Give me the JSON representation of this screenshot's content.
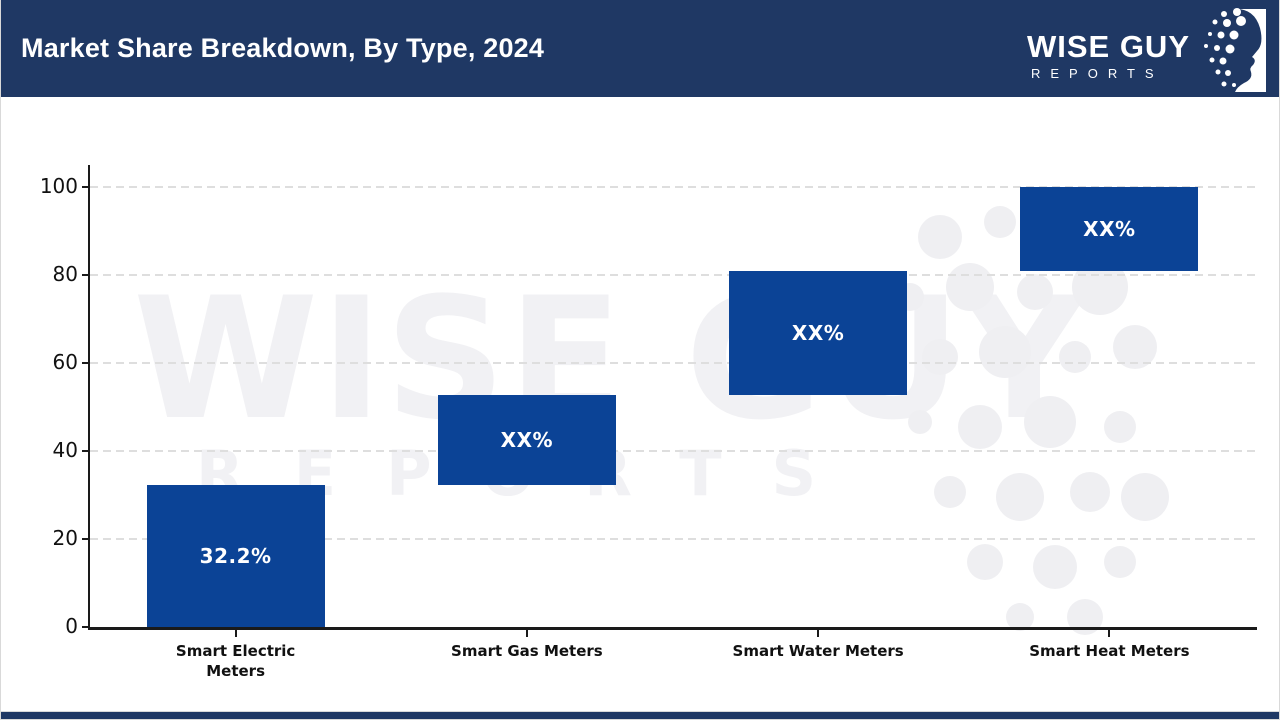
{
  "header": {
    "title": "Market Share Breakdown, By Type, 2024",
    "bg_color": "#1F3864",
    "logo": {
      "line1": "WISE GUY",
      "line2": "REPORTS"
    }
  },
  "watermark": {
    "line1": "WISE GUY",
    "line2": "REPORTS"
  },
  "chart_data": {
    "type": "bar",
    "subtype": "waterfall",
    "title": "Market Share Breakdown, By Type, 2024",
    "categories": [
      "Smart Electric\nMeters",
      "Smart Gas Meters",
      "Smart Water Meters",
      "Smart Heat Meters"
    ],
    "segments": [
      {
        "category": "Smart Electric Meters",
        "start": 0,
        "end": 32.2,
        "label": "32.2%"
      },
      {
        "category": "Smart Gas Meters",
        "start": 32.2,
        "end": 52.7,
        "label": "XX%"
      },
      {
        "category": "Smart Water Meters",
        "start": 52.7,
        "end": 80.9,
        "label": "XX%"
      },
      {
        "category": "Smart Heat Meters",
        "start": 80.9,
        "end": 100,
        "label": "XX%"
      }
    ],
    "xlabel": "",
    "ylabel": "",
    "yticks": [
      0,
      20,
      40,
      60,
      80,
      100
    ],
    "ylim": [
      0,
      105
    ],
    "grid": "horizontal-dashed",
    "legend": "none",
    "bar_color": "#0B4396",
    "grid_color": "#dedede",
    "axis_color": "#1a1a1a",
    "bar_label_color": "#ffffff",
    "watermark_color": "#f1f1f4"
  }
}
